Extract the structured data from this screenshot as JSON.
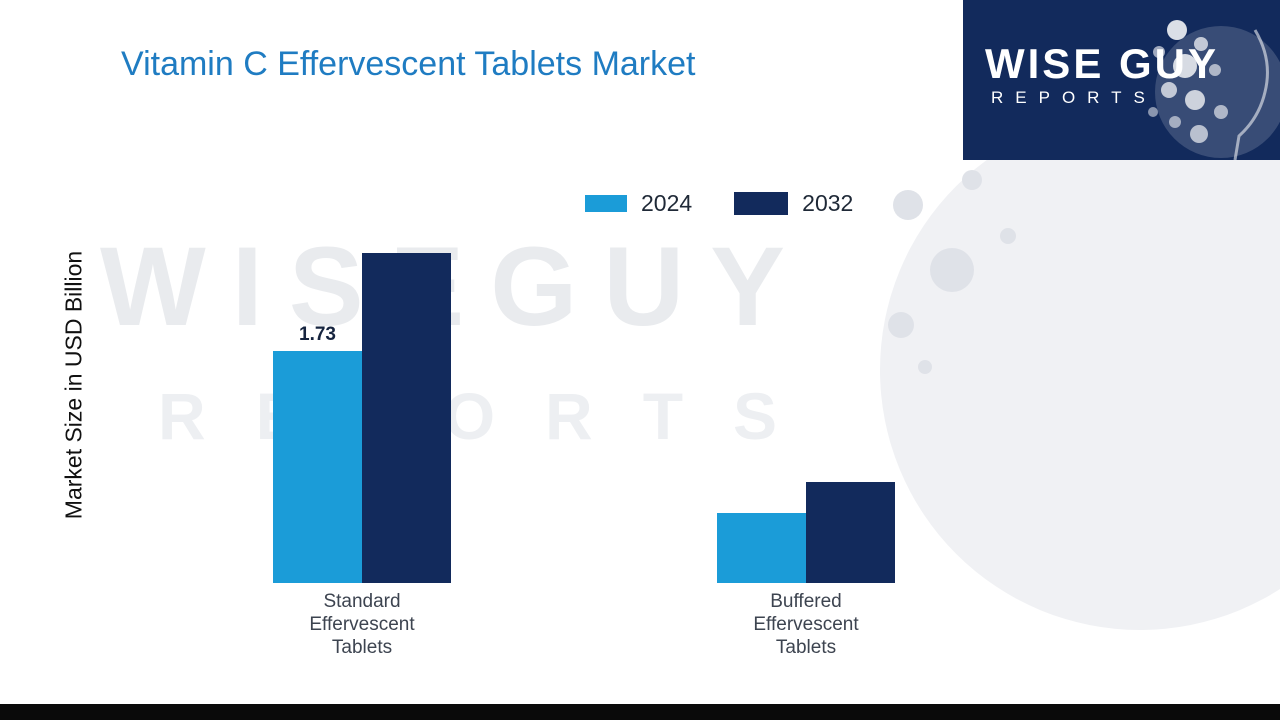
{
  "title": "Vitamin C Effervescent Tablets Market",
  "logo": {
    "line1": "WISE GUY",
    "line2": "REPORTS"
  },
  "watermark": {
    "line1": "WISEGUY",
    "line2": "REPORTS"
  },
  "legend": [
    {
      "label": "2024",
      "color": "#1b9cd8"
    },
    {
      "label": "2032",
      "color": "#122a5c"
    }
  ],
  "chart_data": {
    "type": "bar",
    "title": "Vitamin C Effervescent Tablets Market",
    "categories": [
      "Standard Effervescent Tablets",
      "Buffered Effervescent Tablets"
    ],
    "series": [
      {
        "name": "2024",
        "color": "#1b9cd8",
        "values": [
          1.73,
          0.52
        ]
      },
      {
        "name": "2032",
        "color": "#122a5c",
        "values": [
          2.46,
          0.75
        ]
      }
    ],
    "data_labels": [
      [
        "1.73",
        null
      ],
      [
        null,
        null
      ]
    ],
    "xlabel": "",
    "ylabel": "Market Size in USD Billion",
    "ylim": [
      0,
      2.9
    ],
    "grid": false,
    "legend_position": "top"
  }
}
